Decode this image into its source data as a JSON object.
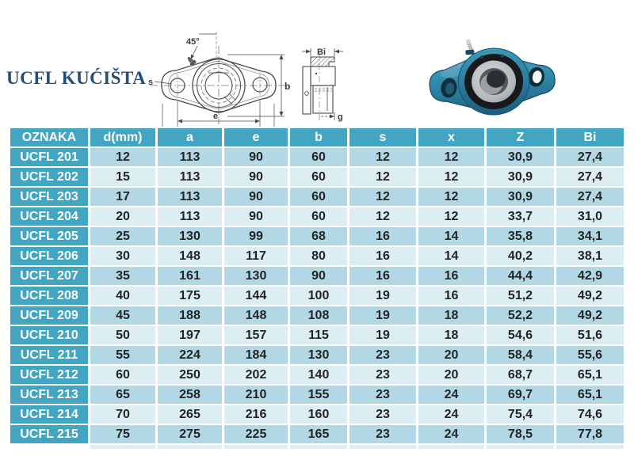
{
  "title": "UCFL KUĆIŠTA",
  "diagrams": {
    "front_view": {
      "labels": {
        "angle": "45°",
        "s": "s",
        "b": "b",
        "e": "e"
      }
    },
    "side_view": {
      "labels": {
        "bi": "Bi",
        "g": "g"
      }
    }
  },
  "photo": {
    "name": "ucfl-flange-bearing-unit-photo"
  },
  "table": {
    "columns": [
      "OZNAKA",
      "d(mm)",
      "a",
      "e",
      "b",
      "s",
      "x",
      "Z",
      "Bi"
    ],
    "rows": [
      {
        "oznaka": "UCFL 201",
        "values": [
          "12",
          "113",
          "90",
          "60",
          "12",
          "12",
          "30,9",
          "27,4"
        ]
      },
      {
        "oznaka": "UCFL 202",
        "values": [
          "15",
          "113",
          "90",
          "60",
          "12",
          "12",
          "30,9",
          "27,4"
        ]
      },
      {
        "oznaka": "UCFL 203",
        "values": [
          "17",
          "113",
          "90",
          "60",
          "12",
          "12",
          "30,9",
          "27,4"
        ]
      },
      {
        "oznaka": "UCFL 204",
        "values": [
          "20",
          "113",
          "90",
          "60",
          "12",
          "12",
          "33,7",
          "31,0"
        ]
      },
      {
        "oznaka": "UCFL 205",
        "values": [
          "25",
          "130",
          "99",
          "68",
          "16",
          "14",
          "35,8",
          "34,1"
        ]
      },
      {
        "oznaka": "UCFL 206",
        "values": [
          "30",
          "148",
          "117",
          "80",
          "16",
          "14",
          "40,2",
          "38,1"
        ]
      },
      {
        "oznaka": "UCFL 207",
        "values": [
          "35",
          "161",
          "130",
          "90",
          "16",
          "16",
          "44,4",
          "42,9"
        ]
      },
      {
        "oznaka": "UCFL 208",
        "values": [
          "40",
          "175",
          "144",
          "100",
          "19",
          "16",
          "51,2",
          "49,2"
        ]
      },
      {
        "oznaka": "UCFL 209",
        "values": [
          "45",
          "188",
          "148",
          "108",
          "19",
          "18",
          "52,2",
          "49,2"
        ]
      },
      {
        "oznaka": "UCFL 210",
        "values": [
          "50",
          "197",
          "157",
          "115",
          "19",
          "18",
          "54,6",
          "51,6"
        ]
      },
      {
        "oznaka": "UCFL 211",
        "values": [
          "55",
          "224",
          "184",
          "130",
          "23",
          "20",
          "58,4",
          "55,6"
        ]
      },
      {
        "oznaka": "UCFL 212",
        "values": [
          "60",
          "250",
          "202",
          "140",
          "23",
          "20",
          "68,7",
          "65,1"
        ]
      },
      {
        "oznaka": "UCFL 213",
        "values": [
          "65",
          "258",
          "210",
          "155",
          "23",
          "24",
          "69,7",
          "65,1"
        ]
      },
      {
        "oznaka": "UCFL 214",
        "values": [
          "70",
          "265",
          "216",
          "160",
          "23",
          "24",
          "75,4",
          "74,6"
        ]
      },
      {
        "oznaka": "UCFL 215",
        "values": [
          "75",
          "275",
          "225",
          "165",
          "23",
          "24",
          "78,5",
          "77,8"
        ]
      }
    ]
  },
  "colors": {
    "header_teal": "#42a5c1",
    "row_band_dark": "#b2d8e6",
    "row_band_light": "#dcedf4",
    "title_text": "#1f4e79",
    "housing_teal": "#2f86a6",
    "drawing_line": "#4a4a4a"
  }
}
